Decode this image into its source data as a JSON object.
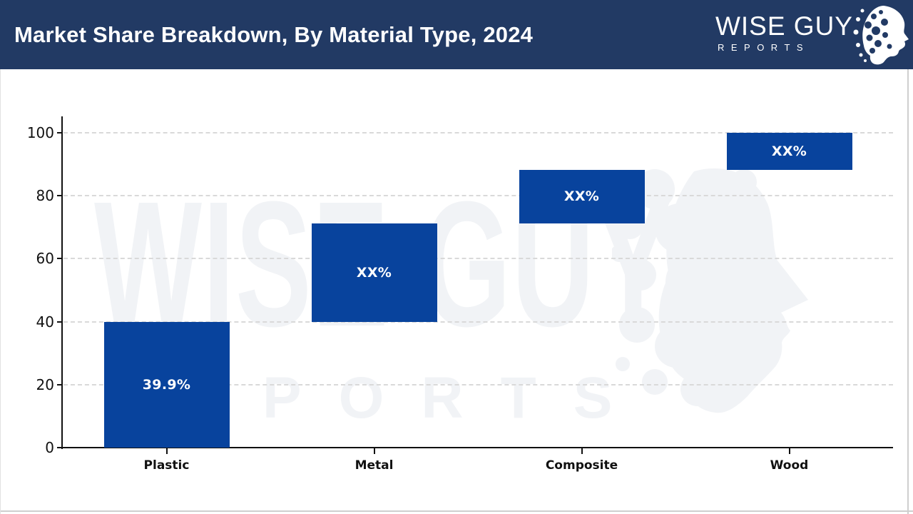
{
  "header": {
    "title": "Market Share Breakdown, By Material Type, 2024",
    "logo": {
      "line1": "WISE GUY",
      "line2": "REPORTS"
    }
  },
  "watermark": {
    "line1": "WISE GUY",
    "line2": "REPORTS"
  },
  "colors": {
    "header_bg": "#223a64",
    "bar_blue": "#08439d",
    "gridline": "#d9d9d9",
    "axis": "#111111",
    "watermark_gray": "#f1f3f6"
  },
  "chart_data": {
    "type": "bar",
    "subtype": "waterfall",
    "title": "Market Share Breakdown, By Material Type, 2024",
    "xlabel": "",
    "ylabel": "",
    "categories": [
      "Plastic",
      "Metal",
      "Composite",
      "Wood"
    ],
    "segments": [
      {
        "category": "Plastic",
        "label": "39.9%",
        "start": 0,
        "end": 39.9
      },
      {
        "category": "Metal",
        "label": "XX%",
        "start": 39.9,
        "end": 71.3
      },
      {
        "category": "Composite",
        "label": "XX%",
        "start": 71.3,
        "end": 88.3
      },
      {
        "category": "Wood",
        "label": "XX%",
        "start": 88.3,
        "end": 100
      }
    ],
    "yticks": [
      0,
      20,
      40,
      60,
      80,
      100
    ],
    "yticklabels": [
      "0",
      "20",
      "40",
      "60",
      "80",
      "100"
    ],
    "ylim": [
      0,
      105
    ],
    "grid": "horizontal-dashed",
    "legend": "none",
    "bar_color": "#08439d",
    "bar_label_color": "#ffffff"
  }
}
